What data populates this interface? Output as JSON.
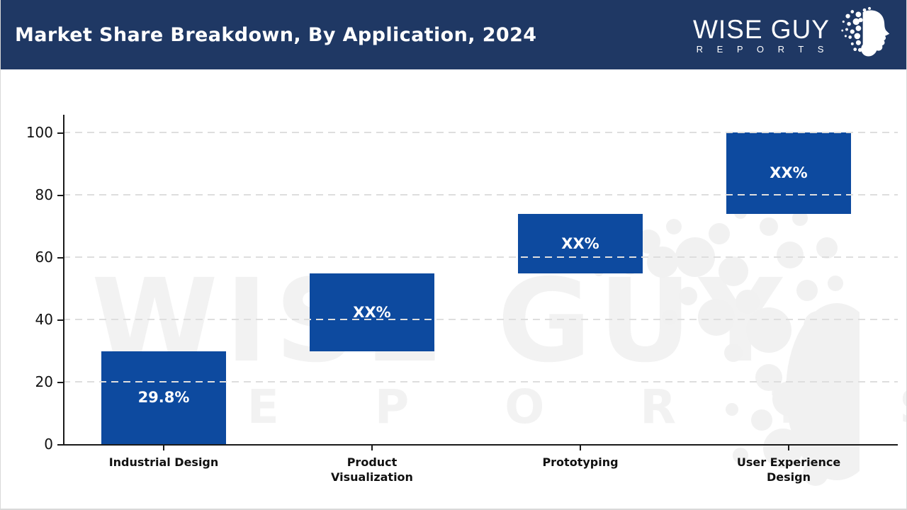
{
  "header": {
    "title": "Market Share Breakdown, By Application, 2024",
    "bg_color": "#1f3864",
    "logo": {
      "line1": "WISE GUY",
      "line2": "R E P O R T S"
    }
  },
  "watermark": {
    "line1": "WISE GUY",
    "line2": "R E P O R T S"
  },
  "chart_data": {
    "type": "bar",
    "subtype": "waterfall",
    "title": "Market Share Breakdown, By Application, 2024",
    "xlabel": "",
    "ylabel": "",
    "ylim": [
      0,
      100
    ],
    "yticks": [
      0,
      20,
      40,
      60,
      80,
      100
    ],
    "grid": "horizontal-dashed",
    "legend": "none",
    "categories": [
      "Industrial Design",
      "Product Visualization",
      "Prototyping",
      "User Experience Design"
    ],
    "segments": [
      {
        "category": "Industrial Design",
        "start": 0,
        "end": 29.8,
        "label": "29.8%"
      },
      {
        "category": "Product Visualization",
        "start": 29.8,
        "end": 54.8,
        "label": "XX%"
      },
      {
        "category": "Prototyping",
        "start": 54.8,
        "end": 73.9,
        "label": "XX%"
      },
      {
        "category": "User Experience Design",
        "start": 73.9,
        "end": 100,
        "label": "XX%"
      }
    ],
    "bar_color": "#0d4a9f",
    "bar_label_color": "#ffffff",
    "axis_color": "#1a1a1a",
    "grid_color": "#dedede"
  }
}
